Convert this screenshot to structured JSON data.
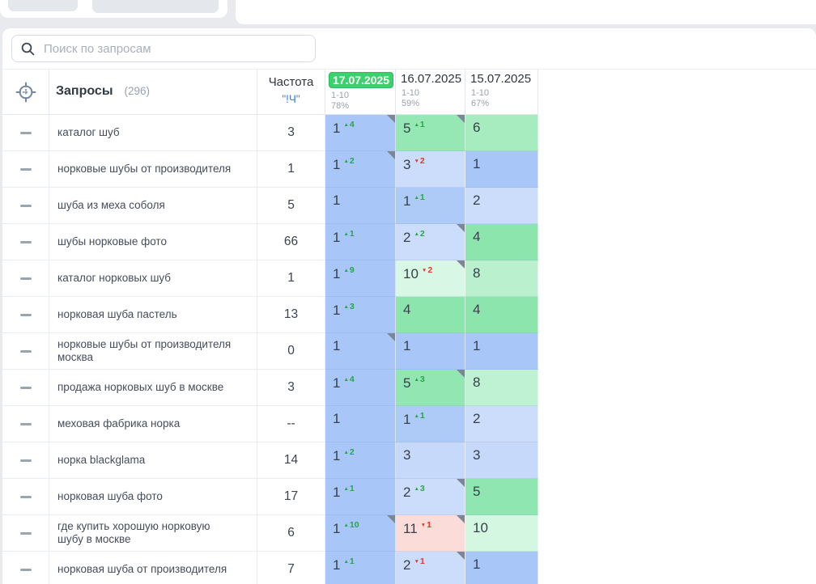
{
  "search": {
    "placeholder": "Поиск по запросам"
  },
  "table": {
    "queries_header": "Запросы",
    "queries_count": "(296)",
    "frequency_header": "Частота",
    "frequency_sub": "\"!Ч\"",
    "dates": [
      {
        "label": "17.07.2025",
        "highlight": true,
        "range": "1-10",
        "percent": "78%"
      },
      {
        "label": "16.07.2025",
        "highlight": false,
        "range": "1-10",
        "percent": "59%"
      },
      {
        "label": "15.07.2025",
        "highlight": false,
        "range": "1-10",
        "percent": "67%"
      }
    ],
    "rows": [
      {
        "query": "каталог шуб",
        "freq": "3",
        "cells": [
          {
            "pos": "1",
            "delta": "4",
            "dir": "up",
            "bg": "#a8c6f7",
            "corner": true
          },
          {
            "pos": "5",
            "delta": "1",
            "dir": "up",
            "bg": "#95e7b4",
            "corner": true
          },
          {
            "pos": "6",
            "delta": "",
            "dir": "",
            "bg": "#a6ecbf",
            "corner": false
          }
        ]
      },
      {
        "query": "норковые шубы от производителя",
        "freq": "1",
        "cells": [
          {
            "pos": "1",
            "delta": "2",
            "dir": "up",
            "bg": "#a8c6f7",
            "corner": true
          },
          {
            "pos": "3",
            "delta": "2",
            "dir": "down",
            "bg": "#ccddfb",
            "corner": false
          },
          {
            "pos": "1",
            "delta": "",
            "dir": "",
            "bg": "#a8c6f7",
            "corner": false
          }
        ]
      },
      {
        "query": "шуба из меха соболя",
        "freq": "5",
        "cells": [
          {
            "pos": "1",
            "delta": "",
            "dir": "",
            "bg": "#a8c6f7",
            "corner": false
          },
          {
            "pos": "1",
            "delta": "1",
            "dir": "up",
            "bg": "#aecbf8",
            "corner": false
          },
          {
            "pos": "2",
            "delta": "",
            "dir": "",
            "bg": "#ccddfb",
            "corner": false
          }
        ]
      },
      {
        "query": "шубы норковые фото",
        "freq": "66",
        "cells": [
          {
            "pos": "1",
            "delta": "1",
            "dir": "up",
            "bg": "#a8c6f7",
            "corner": false
          },
          {
            "pos": "2",
            "delta": "2",
            "dir": "up",
            "bg": "#ccddfb",
            "corner": true
          },
          {
            "pos": "4",
            "delta": "",
            "dir": "",
            "bg": "#8de5ae",
            "corner": false
          }
        ]
      },
      {
        "query": "каталог норковых шуб",
        "freq": "1",
        "cells": [
          {
            "pos": "1",
            "delta": "9",
            "dir": "up",
            "bg": "#a8c6f7",
            "corner": false
          },
          {
            "pos": "10",
            "delta": "2",
            "dir": "down",
            "bg": "#d8f8e5",
            "corner": true
          },
          {
            "pos": "8",
            "delta": "",
            "dir": "",
            "bg": "#bbf0ce",
            "corner": false
          }
        ]
      },
      {
        "query": "норковая шуба пастель",
        "freq": "13",
        "cells": [
          {
            "pos": "1",
            "delta": "3",
            "dir": "up",
            "bg": "#a8c6f7",
            "corner": false
          },
          {
            "pos": "4",
            "delta": "",
            "dir": "",
            "bg": "#8de5ae",
            "corner": false
          },
          {
            "pos": "4",
            "delta": "",
            "dir": "",
            "bg": "#8de5ae",
            "corner": false
          }
        ]
      },
      {
        "query": "норковые шубы от производителя москва",
        "freq": "0",
        "cells": [
          {
            "pos": "1",
            "delta": "",
            "dir": "",
            "bg": "#a8c6f7",
            "corner": true
          },
          {
            "pos": "1",
            "delta": "",
            "dir": "",
            "bg": "#a8c6f7",
            "corner": false
          },
          {
            "pos": "1",
            "delta": "",
            "dir": "",
            "bg": "#a8c6f7",
            "corner": false
          }
        ]
      },
      {
        "query": "продажа норковых шуб в москве",
        "freq": "3",
        "cells": [
          {
            "pos": "1",
            "delta": "4",
            "dir": "up",
            "bg": "#a8c6f7",
            "corner": false
          },
          {
            "pos": "5",
            "delta": "3",
            "dir": "up",
            "bg": "#92e6b1",
            "corner": true
          },
          {
            "pos": "8",
            "delta": "",
            "dir": "",
            "bg": "#bff2d2",
            "corner": false
          }
        ]
      },
      {
        "query": "меховая фабрика норка",
        "freq": "--",
        "cells": [
          {
            "pos": "1",
            "delta": "",
            "dir": "",
            "bg": "#a8c6f7",
            "corner": false
          },
          {
            "pos": "1",
            "delta": "1",
            "dir": "up",
            "bg": "#aecbf8",
            "corner": false
          },
          {
            "pos": "2",
            "delta": "",
            "dir": "",
            "bg": "#ccddfb",
            "corner": false
          }
        ]
      },
      {
        "query": "норка blackglama",
        "freq": "14",
        "cells": [
          {
            "pos": "1",
            "delta": "2",
            "dir": "up",
            "bg": "#a8c6f7",
            "corner": false
          },
          {
            "pos": "3",
            "delta": "",
            "dir": "",
            "bg": "#c6d9fa",
            "corner": false
          },
          {
            "pos": "3",
            "delta": "",
            "dir": "",
            "bg": "#c6d9fa",
            "corner": false
          }
        ]
      },
      {
        "query": "норковая шуба фото",
        "freq": "17",
        "cells": [
          {
            "pos": "1",
            "delta": "1",
            "dir": "up",
            "bg": "#a8c6f7",
            "corner": false
          },
          {
            "pos": "2",
            "delta": "3",
            "dir": "up",
            "bg": "#ccddfb",
            "corner": true
          },
          {
            "pos": "5",
            "delta": "",
            "dir": "",
            "bg": "#8fe6b0",
            "corner": false
          }
        ]
      },
      {
        "query": "где купить хорошую норковую шубу в москве",
        "freq": "6",
        "cells": [
          {
            "pos": "1",
            "delta": "10",
            "dir": "up",
            "bg": "#a8c6f7",
            "corner": true
          },
          {
            "pos": "11",
            "delta": "1",
            "dir": "down",
            "bg": "#fcdcd9",
            "corner": true
          },
          {
            "pos": "10",
            "delta": "",
            "dir": "",
            "bg": "#d4f7e2",
            "corner": false
          }
        ]
      },
      {
        "query": "норковая шуба от производителя",
        "freq": "7",
        "cells": [
          {
            "pos": "1",
            "delta": "1",
            "dir": "up",
            "bg": "#a8c6f7",
            "corner": false
          },
          {
            "pos": "2",
            "delta": "1",
            "dir": "down",
            "bg": "#ccddfb",
            "corner": true
          },
          {
            "pos": "1",
            "delta": "",
            "dir": "",
            "bg": "#a8c6f7",
            "corner": false
          }
        ]
      }
    ]
  },
  "colors": {
    "date_highlight_bg": "#3ed06e",
    "date_highlight_border": "#2abf5b",
    "delta_up": "#27a644",
    "delta_down": "#e2372b",
    "corner_marker": "#7c8695",
    "pos_blue_1": "#a8c6f7",
    "pos_blue_2_3": "#ccddfb",
    "pos_green_4_5": "#8de5ae",
    "pos_green_6_10": "#d4f7e2",
    "pos_red_11plus": "#fcdcd9"
  }
}
